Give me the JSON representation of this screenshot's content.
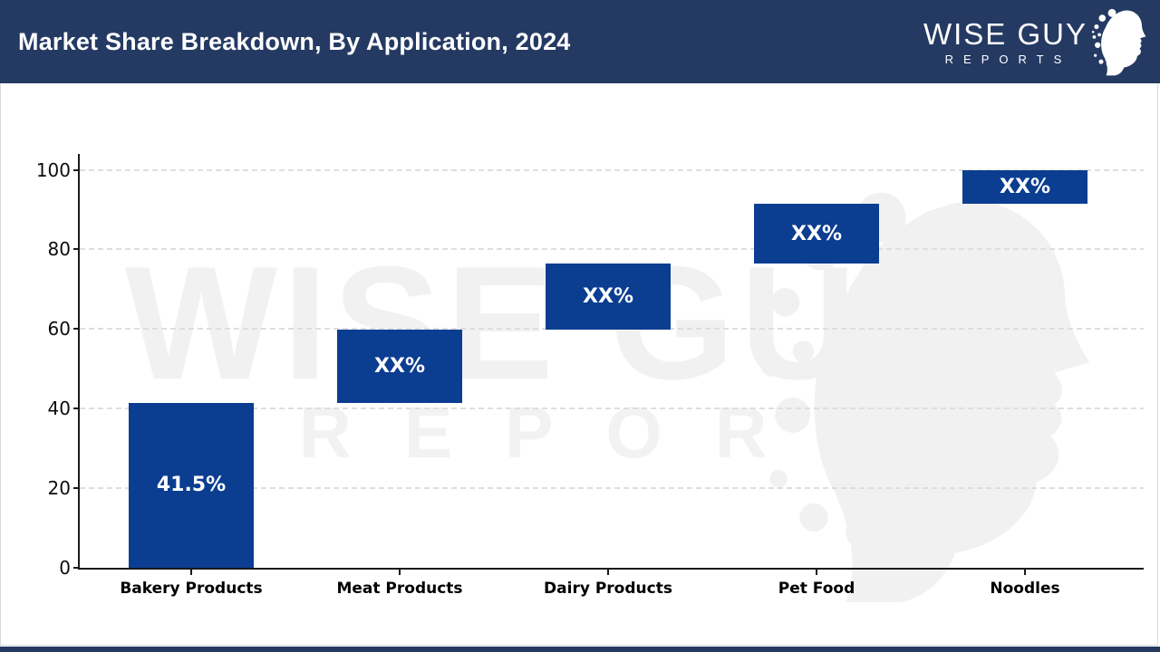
{
  "header": {
    "title": "Market Share Breakdown, By Application, 2024",
    "logo": {
      "line1": "WISE GUY",
      "line2": "REPORTS"
    }
  },
  "watermark": {
    "line1": "WISE GUY",
    "line2": "REPORTS"
  },
  "colors": {
    "header_bg": "#243a63",
    "bar": "#0b3d91",
    "bar_label": "#ffffff",
    "gridline": "#dedede",
    "axis": "#1a1a1a",
    "watermark": "#f1f1f1"
  },
  "chart_data": {
    "type": "bar",
    "subtype": "waterfall",
    "title": "Market Share Breakdown, By Application, 2024",
    "categories": [
      "Bakery Products",
      "Meat Products",
      "Dairy Products",
      "Pet Food",
      "Noodles"
    ],
    "segments": [
      {
        "category": "Bakery Products",
        "start": 0,
        "end": 41.5,
        "label": "41.5%"
      },
      {
        "category": "Meat Products",
        "start": 41.5,
        "end": 59.8,
        "label": "XX%"
      },
      {
        "category": "Dairy Products",
        "start": 59.8,
        "end": 76.4,
        "label": "XX%"
      },
      {
        "category": "Pet Food",
        "start": 76.4,
        "end": 91.5,
        "label": "XX%"
      },
      {
        "category": "Noodles",
        "start": 91.5,
        "end": 100,
        "label": "XX%"
      }
    ],
    "yticks": [
      0,
      20,
      40,
      60,
      80,
      100
    ],
    "ylim": [
      0,
      100
    ],
    "xlabel": "",
    "ylabel": "",
    "grid": "horizontal-dashed",
    "legend": "none",
    "bar_color": "#0b3d91",
    "label_color": "#ffffff"
  }
}
